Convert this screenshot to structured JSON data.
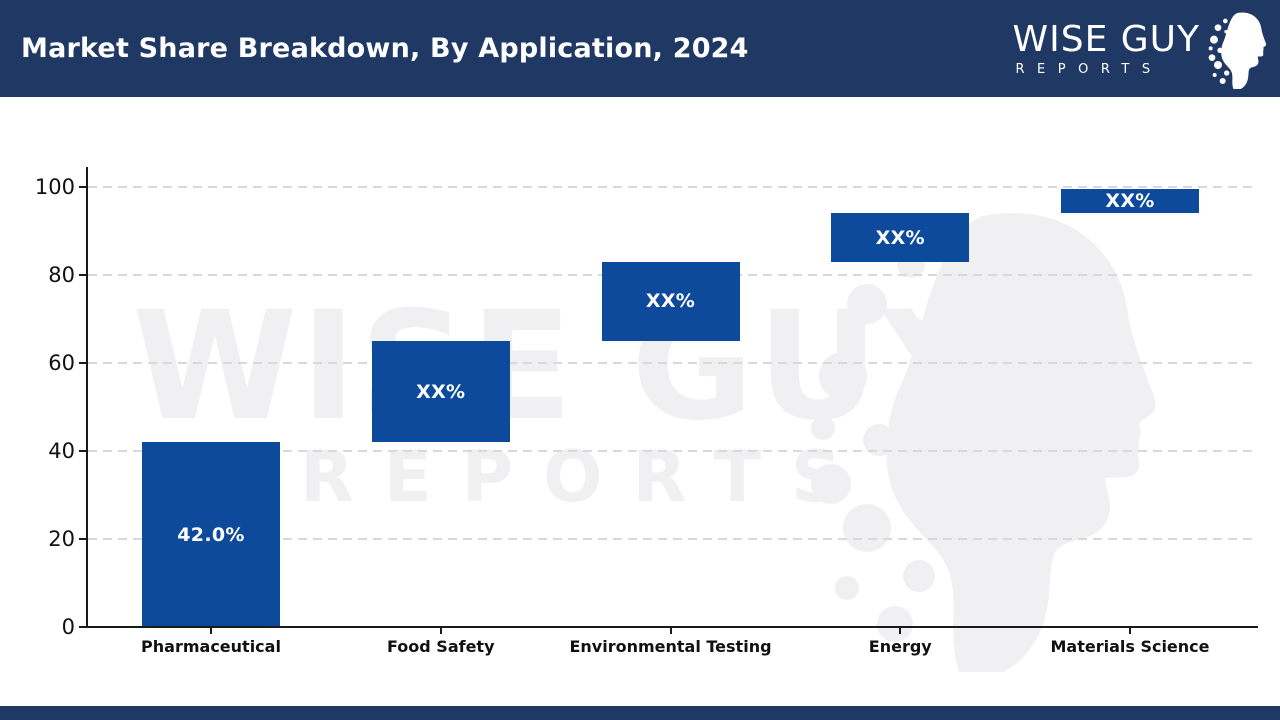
{
  "header": {
    "title": "Market Share Breakdown, By Application, 2024",
    "logo": {
      "line1": "WISE GUY",
      "line2": "REPORTS"
    }
  },
  "watermark": {
    "line1": "WISE GUY",
    "line2": "REPORTS"
  },
  "colors": {
    "header_bg": "#1f3864",
    "footer_bg": "#1f3864",
    "bar": "#0d4a9c",
    "bar_label": "#ffffff",
    "gridline": "#d9d9d9",
    "axis": "#1a1a1a",
    "watermark": "#f0f0f2"
  },
  "chart_data": {
    "type": "bar",
    "subtype": "waterfall-floating-bars",
    "title": "Market Share Breakdown, By Application, 2024",
    "categories": [
      "Pharmaceutical",
      "Food Safety",
      "Environmental Testing",
      "Energy",
      "Materials Science"
    ],
    "segments": [
      {
        "category": "Pharmaceutical",
        "start": 0,
        "end": 42,
        "label": "42.0%"
      },
      {
        "category": "Food Safety",
        "start": 42,
        "end": 65,
        "label": "XX%"
      },
      {
        "category": "Environmental Testing",
        "start": 65,
        "end": 83,
        "label": "XX%"
      },
      {
        "category": "Energy",
        "start": 83,
        "end": 94,
        "label": "XX%"
      },
      {
        "category": "Materials Science",
        "start": 94,
        "end": 99.5,
        "label": "XX%"
      }
    ],
    "xlabel": "",
    "ylabel": "",
    "y_ticks": [
      0,
      20,
      40,
      60,
      80,
      100
    ],
    "ylim": [
      0,
      105
    ],
    "grid": "horizontal-dashed",
    "legend": "none"
  }
}
